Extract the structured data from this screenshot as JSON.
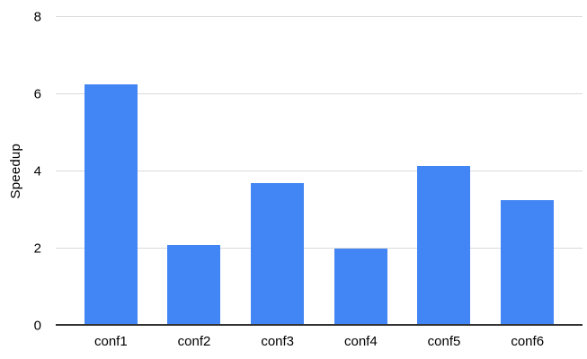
{
  "chart_data": {
    "type": "bar",
    "title": "",
    "xlabel": "",
    "ylabel": "Speedup",
    "categories": [
      "conf1",
      "conf2",
      "conf3",
      "conf4",
      "conf5",
      "conf6"
    ],
    "values": [
      6.25,
      2.1,
      3.7,
      2.0,
      4.15,
      3.25
    ],
    "ylim": [
      0,
      8
    ],
    "yticks": [
      0,
      2,
      4,
      6,
      8
    ],
    "grid": true,
    "legend": "none",
    "colors": {
      "bar": "#4285F4",
      "gridline": "#dadada",
      "axis_line": "#333333",
      "label_text": "#000000",
      "background": "#ffffff"
    }
  }
}
